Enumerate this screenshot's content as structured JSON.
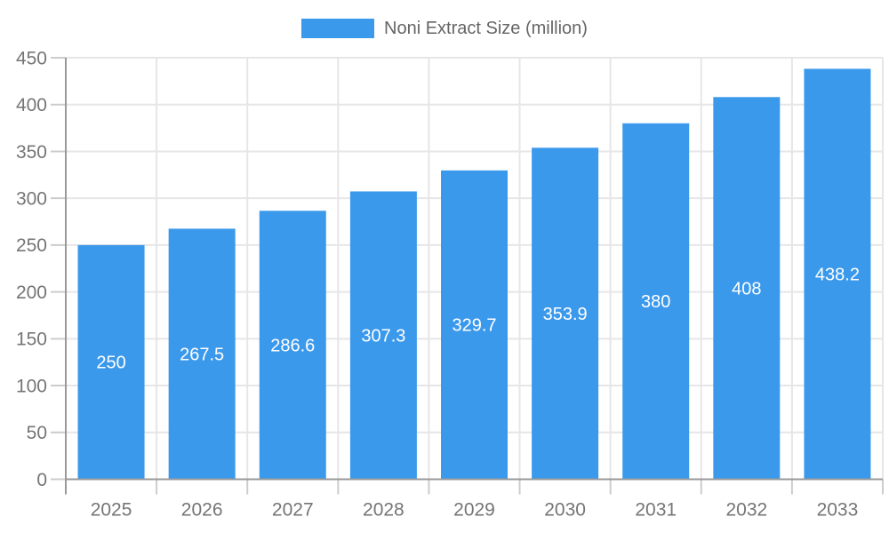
{
  "legend": {
    "label": "Noni Extract Size (million)"
  },
  "chart_data": {
    "type": "bar",
    "title": "",
    "xlabel": "",
    "ylabel": "",
    "categories": [
      "2025",
      "2026",
      "2027",
      "2028",
      "2029",
      "2030",
      "2031",
      "2032",
      "2033"
    ],
    "series": [
      {
        "name": "Noni Extract Size (million)",
        "values": [
          250,
          267.5,
          286.6,
          307.3,
          329.7,
          353.9,
          380,
          408,
          438.2
        ]
      }
    ],
    "value_labels": [
      "250",
      "267.5",
      "286.6",
      "307.3",
      "329.7",
      "353.9",
      "380",
      "408",
      "438.2"
    ],
    "ylim": [
      0,
      450
    ],
    "ytick_step": 50,
    "ytick_labels": [
      "0",
      "50",
      "100",
      "150",
      "200",
      "250",
      "300",
      "350",
      "400",
      "450"
    ],
    "grid": true,
    "legend_position": "top-center",
    "value_label_position": "inside-middle",
    "colors": {
      "bar": "#3B99EC",
      "axis": "#999999",
      "grid": "#E6E6E6",
      "tick": "#CCCCCC",
      "axis_label": "#757575",
      "value_label": "#FFFFFF",
      "legend_text": "#666666",
      "background": "#FFFFFF"
    }
  }
}
